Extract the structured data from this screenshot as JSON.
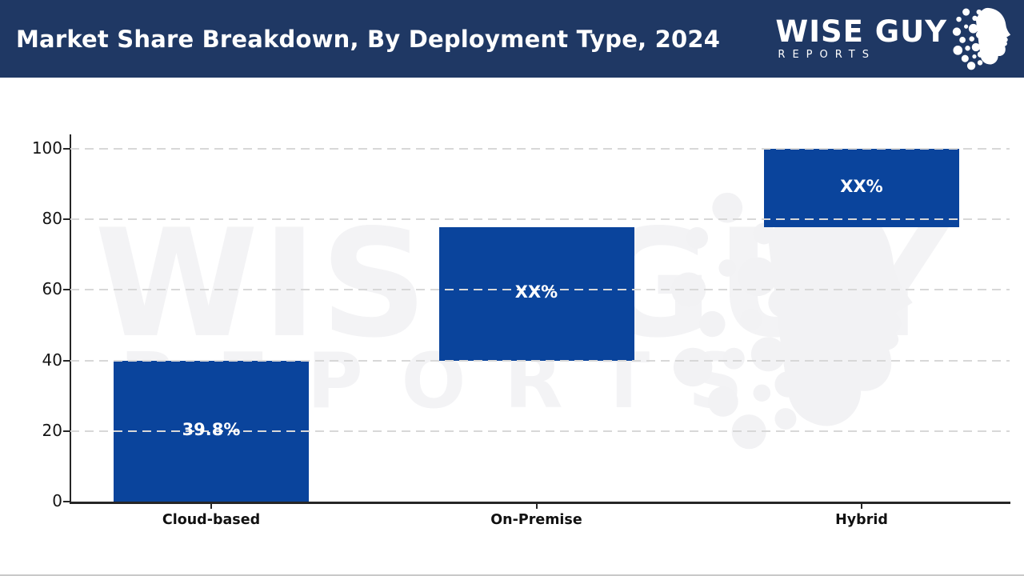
{
  "header": {
    "title": "Market Share Breakdown, By Deployment Type, 2024",
    "background_color": "#1F3864"
  },
  "logo": {
    "line1": "WISE GUY",
    "line2": "REPORTS",
    "icon": "wiseguy-face-icon",
    "color": "#ffffff"
  },
  "watermark": {
    "line1": "WISE GUY",
    "line2": "REPORTS",
    "icon": "wiseguy-face-icon",
    "color": "#f3f3f5"
  },
  "chart_data": {
    "type": "bar",
    "subtype": "stacked-waterfall (each bar starts where previous ended)",
    "title": "Market Share Breakdown, By Deployment Type, 2024",
    "categories": [
      "Cloud-based",
      "On-Premise",
      "Hybrid"
    ],
    "segments": [
      {
        "category": "Cloud-based",
        "start": 0,
        "end": 39.8,
        "label": "39.8%"
      },
      {
        "category": "On-Premise",
        "start": 40,
        "end": 77.8,
        "label": "XX%"
      },
      {
        "category": "Hybrid",
        "start": 77.7,
        "end": 100,
        "label": "XX%"
      }
    ],
    "value_labels": [
      "39.8%",
      "XX%",
      "XX%"
    ],
    "yticks": [
      0,
      20,
      40,
      60,
      80,
      100
    ],
    "ylim": [
      0,
      104
    ],
    "xlabel": "",
    "ylabel": "",
    "legend": "none",
    "grid": "horizontal dashed lines drawn over bars",
    "bar_color": "#0A449C",
    "grid_color": "#d8d8d8",
    "axis_color": "#262626"
  }
}
